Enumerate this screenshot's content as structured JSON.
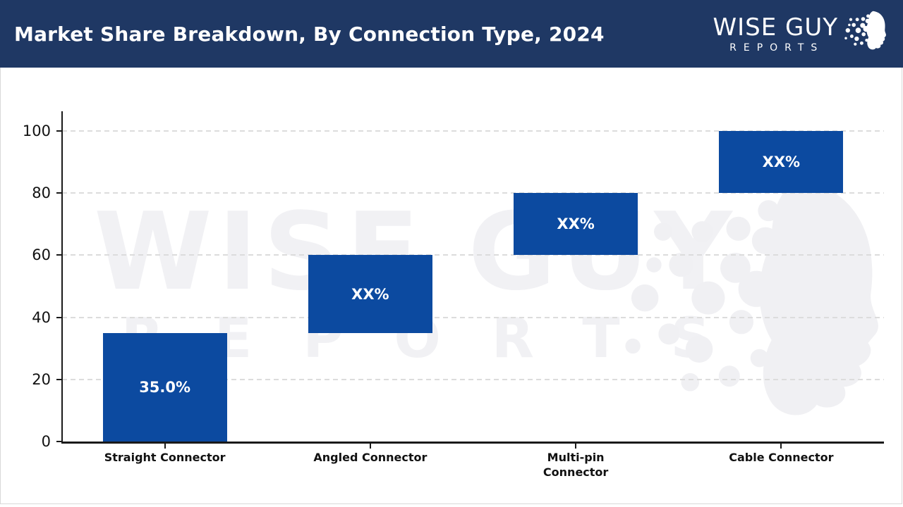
{
  "header": {
    "title": "Market Share Breakdown, By Connection Type, 2024",
    "logo_primary": "WISE GUY",
    "logo_secondary": "REPORTS"
  },
  "watermark": {
    "primary": "WISE GUY",
    "secondary": "REPORTS"
  },
  "chart_data": {
    "type": "bar",
    "subtype": "floating-waterfall",
    "title": "Market Share Breakdown, By Connection Type, 2024",
    "xlabel": "",
    "ylabel": "",
    "ylim": [
      0,
      100
    ],
    "yticks": [
      0,
      20,
      40,
      60,
      80,
      100
    ],
    "grid": "horizontal-dashed",
    "legend": "none",
    "categories": [
      "Straight Connector",
      "Angled Connector",
      "Multi-pin\nConnector",
      "Cable Connector"
    ],
    "segments": [
      {
        "start": 0,
        "end": 35,
        "label": "35.0%"
      },
      {
        "start": 35,
        "end": 60,
        "label": "XX%"
      },
      {
        "start": 60,
        "end": 80,
        "label": "XX%"
      },
      {
        "start": 80,
        "end": 100,
        "label": "XX%"
      }
    ]
  },
  "colors": {
    "header_bg": "#1F3864",
    "bar": "#0C4AA0",
    "watermark": "#F1F1F4",
    "gridline": "#DCDCDC",
    "axis": "#1A1A1A",
    "value_label": "#FFFFFF"
  }
}
